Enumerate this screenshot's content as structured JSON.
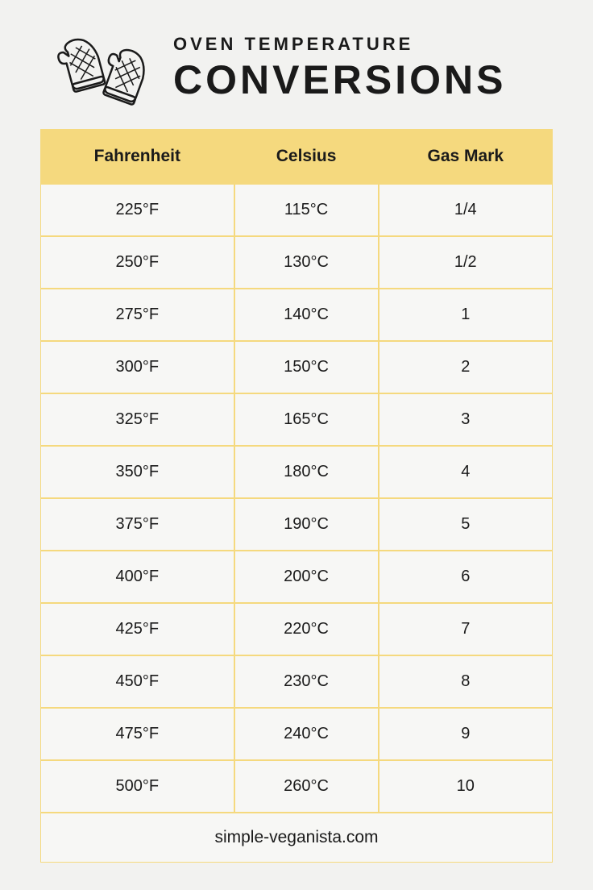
{
  "header": {
    "subtitle": "OVEN TEMPERATURE",
    "title": "CONVERSIONS"
  },
  "table": {
    "columns": [
      "Fahrenheit",
      "Celsius",
      "Gas Mark"
    ],
    "rows": [
      [
        "225°F",
        "115°C",
        "1/4"
      ],
      [
        "250°F",
        "130°C",
        "1/2"
      ],
      [
        "275°F",
        "140°C",
        "1"
      ],
      [
        "300°F",
        "150°C",
        "2"
      ],
      [
        "325°F",
        "165°C",
        "3"
      ],
      [
        "350°F",
        "180°C",
        "4"
      ],
      [
        "375°F",
        "190°C",
        "5"
      ],
      [
        "400°F",
        "200°C",
        "6"
      ],
      [
        "425°F",
        "220°C",
        "7"
      ],
      [
        "450°F",
        "230°C",
        "8"
      ],
      [
        "475°F",
        "240°C",
        "9"
      ],
      [
        "500°F",
        "260°C",
        "10"
      ]
    ],
    "footer": "simple-veganista.com",
    "header_bg_color": "#f5d97e",
    "cell_bg_color": "#f7f7f5",
    "border_color": "#f5d97e",
    "page_bg_color": "#f2f2f0",
    "text_color": "#1a1a1a",
    "header_fontsize": 21,
    "cell_fontsize": 20,
    "title_fontsize": 50,
    "subtitle_fontsize": 22
  }
}
